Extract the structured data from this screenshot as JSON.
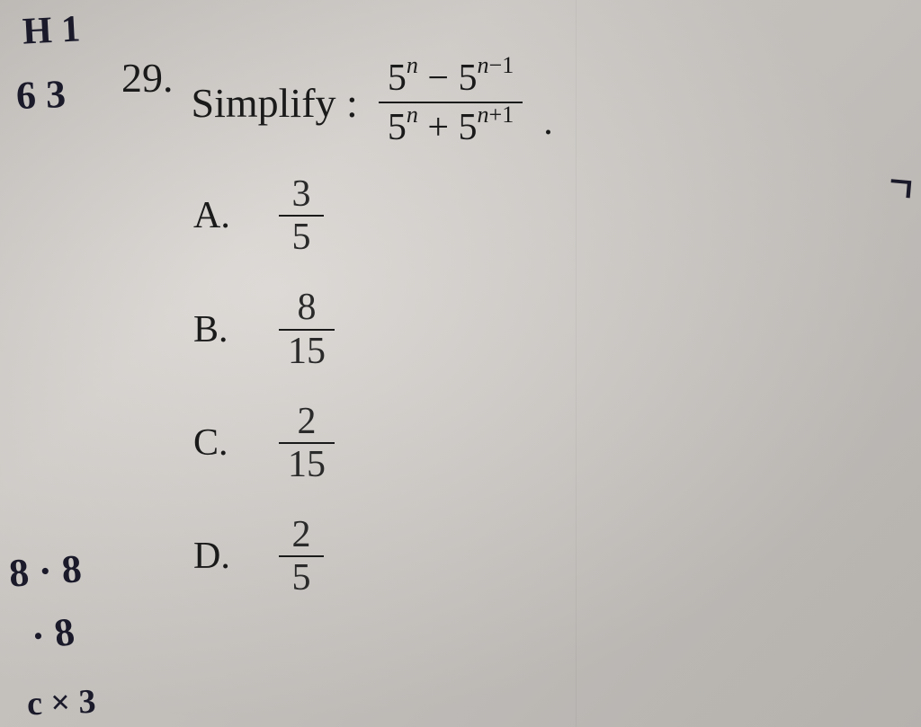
{
  "question": {
    "number": "29.",
    "prompt": "Simplify :",
    "expression": {
      "numerator": "5<sup><i>n</i></sup> − 5<sup><i>n</i>−1</sup>",
      "denominator": "5<sup><i>n</i></sup> + 5<sup><i>n</i>+1</sup>"
    },
    "period": "."
  },
  "options": [
    {
      "label": "A.",
      "num": "3",
      "den": "5"
    },
    {
      "label": "B.",
      "num": "8",
      "den": "15"
    },
    {
      "label": "C.",
      "num": "2",
      "den": "15"
    },
    {
      "label": "D.",
      "num": "2",
      "den": "5"
    }
  ],
  "handwriting": {
    "top": "H 1",
    "left": "6 3",
    "bottom1": "8 · 8",
    "bottom2": "· 8",
    "bottom3": "c × 3",
    "right": "ㄱ"
  },
  "style": {
    "text_color": "#1a1a1a",
    "background": "#d0ccc8",
    "font_main": "Times New Roman",
    "font_handwriting": "Comic Sans MS",
    "question_fontsize": 46,
    "option_fontsize": 42,
    "handwriting_fontsize": 44
  }
}
